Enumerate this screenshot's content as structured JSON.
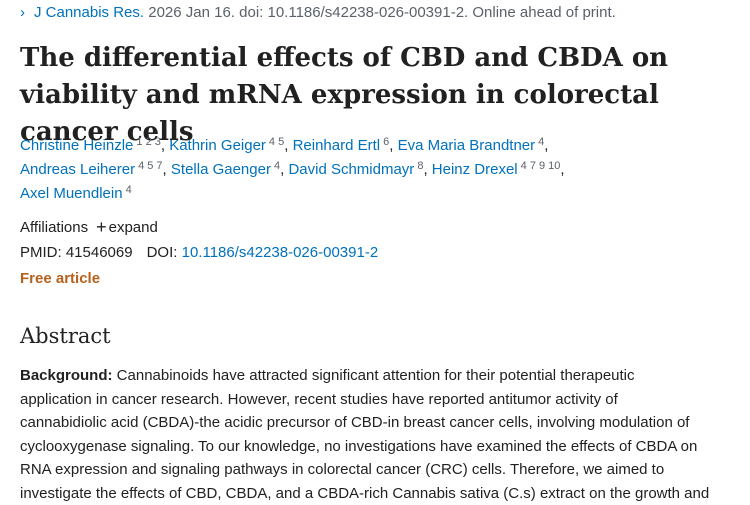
{
  "citation": {
    "chevron": "›",
    "journal": "J Cannabis Res.",
    "details": " 2026 Jan 16. doi: 10.1186/s42238-026-00391-2. Online ahead of print."
  },
  "article": {
    "title": "The differential effects of CBD and CBDA on viability and mRNA expression in colorectal cancer cells"
  },
  "authors": [
    {
      "name": "Christine Heinzle",
      "aff": "1 2 3"
    },
    {
      "name": "Kathrin Geiger",
      "aff": "4 5"
    },
    {
      "name": "Reinhard Ertl",
      "aff": "6"
    },
    {
      "name": "Eva Maria Brandtner",
      "aff": "4"
    },
    {
      "name": "Andreas Leiherer",
      "aff": "4 5 7"
    },
    {
      "name": "Stella Gaenger",
      "aff": "4"
    },
    {
      "name": "David Schmidmayr",
      "aff": "8"
    },
    {
      "name": "Heinz Drexel",
      "aff": "4 7 9 10"
    },
    {
      "name": "Axel Muendlein",
      "aff": "4"
    }
  ],
  "affiliations": {
    "label": "Affiliations",
    "plus": "+",
    "expand": "expand"
  },
  "identifiers": {
    "pmid_label": "PMID:",
    "pmid": "41546069",
    "doi_label": "DOI:",
    "doi": "10.1186/s42238-026-00391-2"
  },
  "free_article": "Free article",
  "abstract": {
    "heading": "Abstract",
    "background_label": "Background:",
    "lines": [
      " Cannabinoids have attracted significant attention for their potential therapeutic",
      "application in cancer research. However, recent studies have reported antitumor activity of",
      "cannabidiolic acid (CBDA)-the acidic precursor of CBD-in breast cancer cells, involving modulation of",
      "cyclooxygenase signaling. To our knowledge, no investigations have examined the effects of CBDA on",
      "RNA expression and signaling pathways in colorectal cancer (CRC) cells. Therefore, we aimed to",
      "investigate the effects of CBD, CBDA, and a CBDA-rich Cannabis sativa (C.s) extract on the growth and"
    ]
  }
}
